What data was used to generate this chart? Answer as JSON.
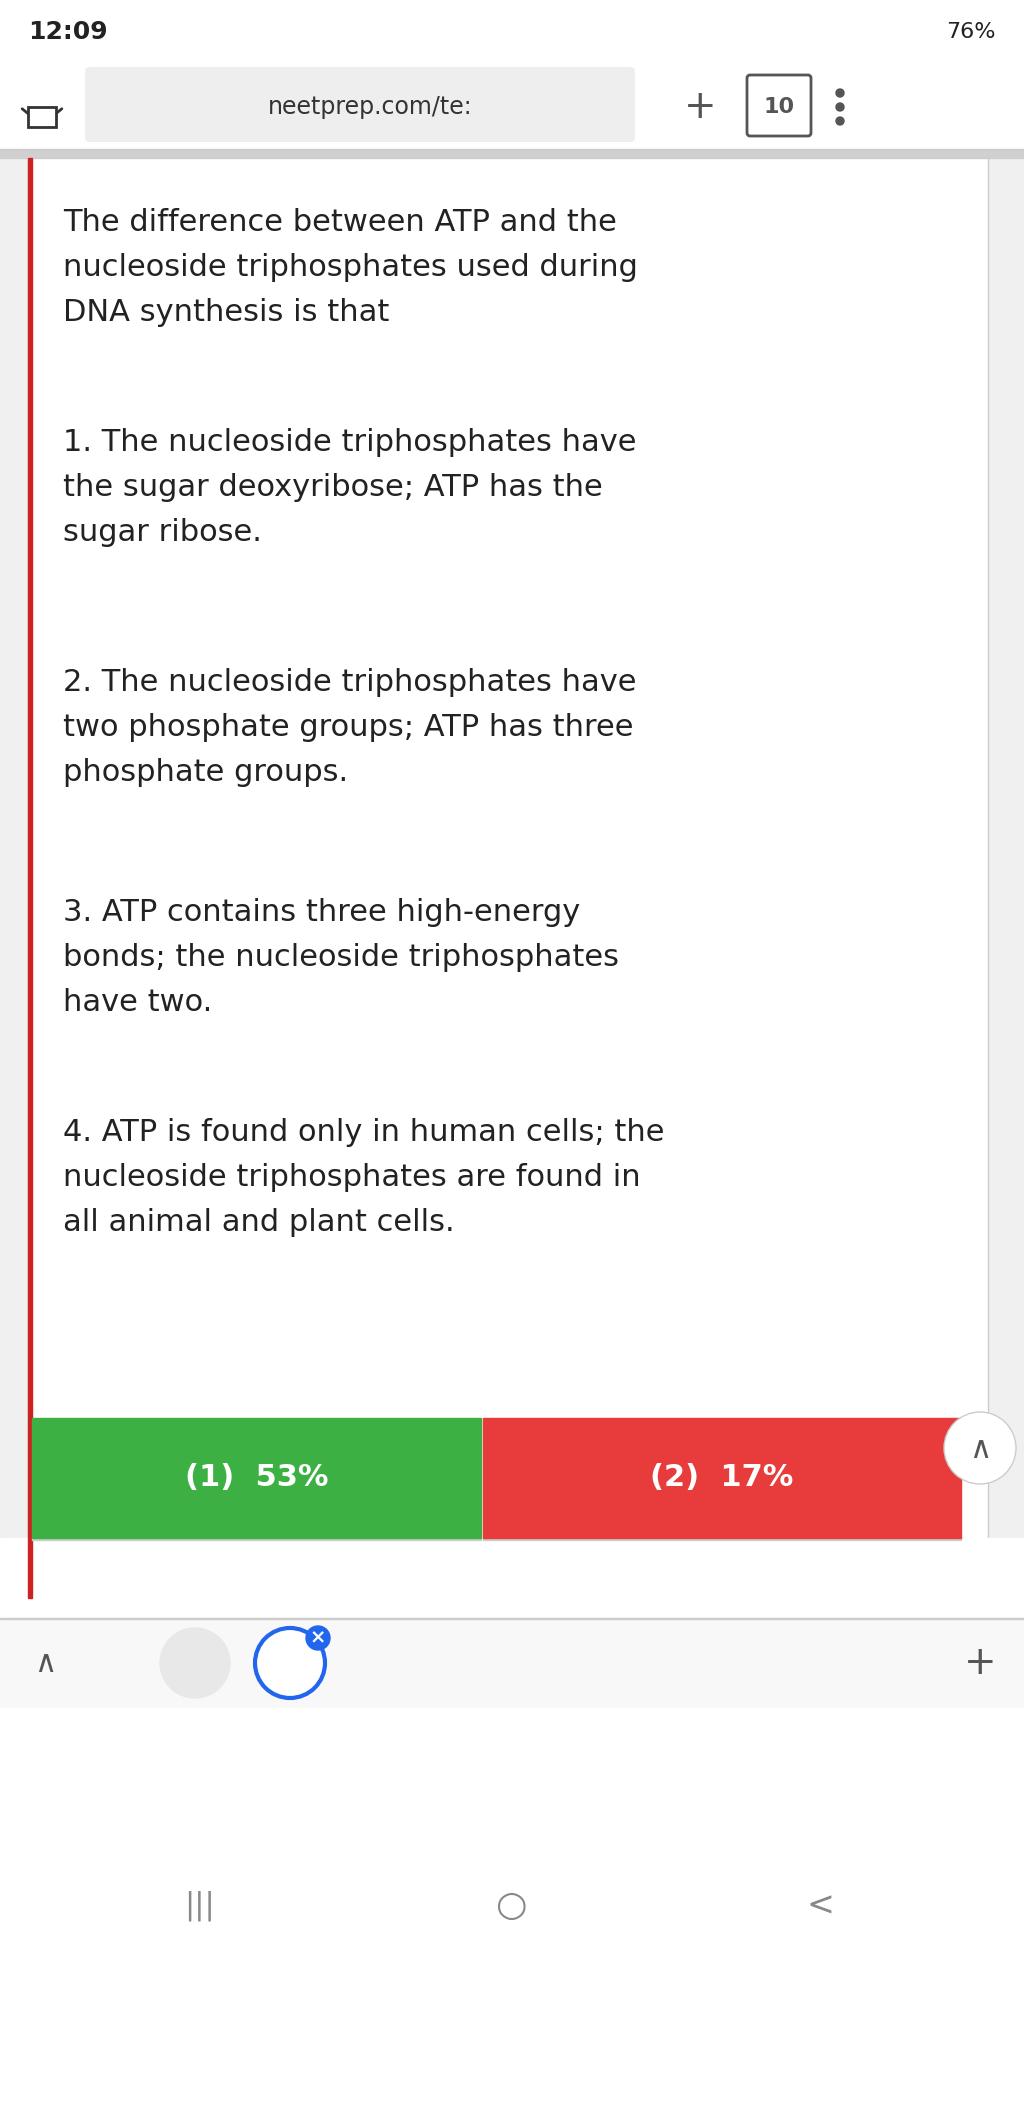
{
  "bg_color": "#f0f0f0",
  "status_bar": {
    "time": "12:09",
    "battery": "76%",
    "bg": "#ffffff"
  },
  "url_bar_bg": "#ffffff",
  "url_text": "neetprep.com/te:",
  "content_bg": "#ffffff",
  "question_text": "The difference between ATP and the\nnucleoside triphosphates used during\nDNA synthesis is that",
  "options": [
    "1. The nucleoside triphosphates have\nthe sugar deoxyribose; ATP has the\nsugar ribose.",
    "2. The nucleoside triphosphates have\ntwo phosphate groups; ATP has three\nphosphate groups.",
    "3. ATP contains three high-energy\nbonds; the nucleoside triphosphates\nhave two.",
    "4. ATP is found only in human cells; the\nnucleoside triphosphates are found in\nall animal and plant cells."
  ],
  "bar_option1_label": "(1)  53%",
  "bar_option1_pct": 0.53,
  "bar_option1_color": "#3cb043",
  "bar_option2_label": "(2)  17%",
  "bar_option2_pct": 0.17,
  "bar_option2_color": "#e83b3b",
  "text_color": "#222222",
  "font_size_question": 22,
  "font_size_options": 22,
  "font_size_bar": 22
}
